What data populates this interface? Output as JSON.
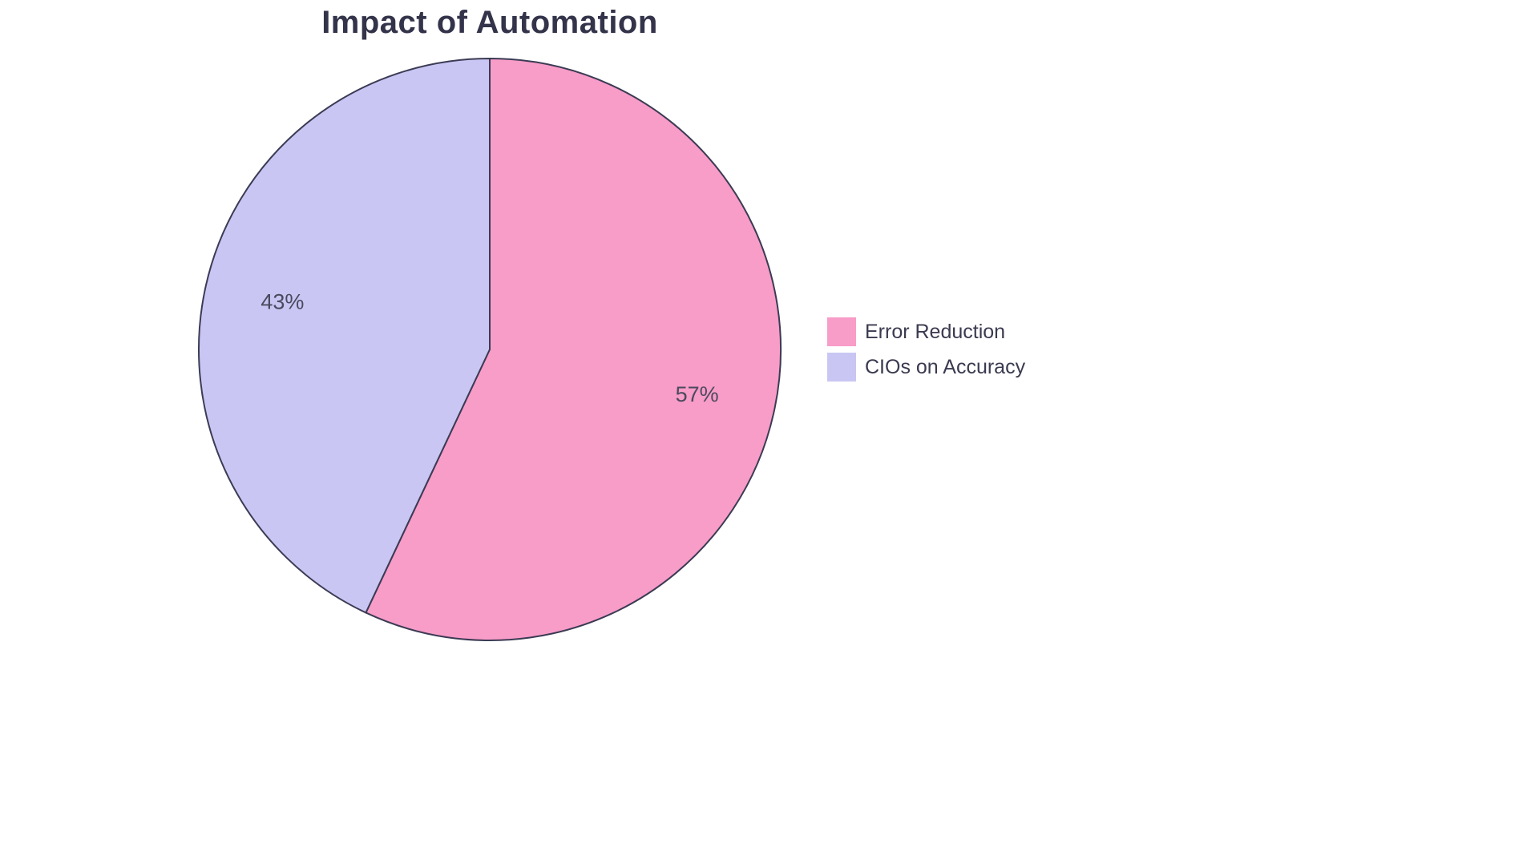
{
  "title": "Impact of Automation",
  "chart_data": {
    "type": "pie",
    "title": "Impact of Automation",
    "slices": [
      {
        "label": "Error Reduction",
        "value": 57,
        "pct_label": "57%",
        "color": "#F89CC8"
      },
      {
        "label": "CIOs on Accuracy",
        "value": 43,
        "pct_label": "43%",
        "color": "#C9C6F4"
      }
    ],
    "start_angle_deg": -90,
    "direction": "clockwise",
    "stroke_color": "#3B3B54",
    "stroke_width": 2,
    "label_color": "#4A4A5E",
    "label_radius_fraction": 0.73,
    "legend_position": "right",
    "background": "#FFFFFF"
  }
}
